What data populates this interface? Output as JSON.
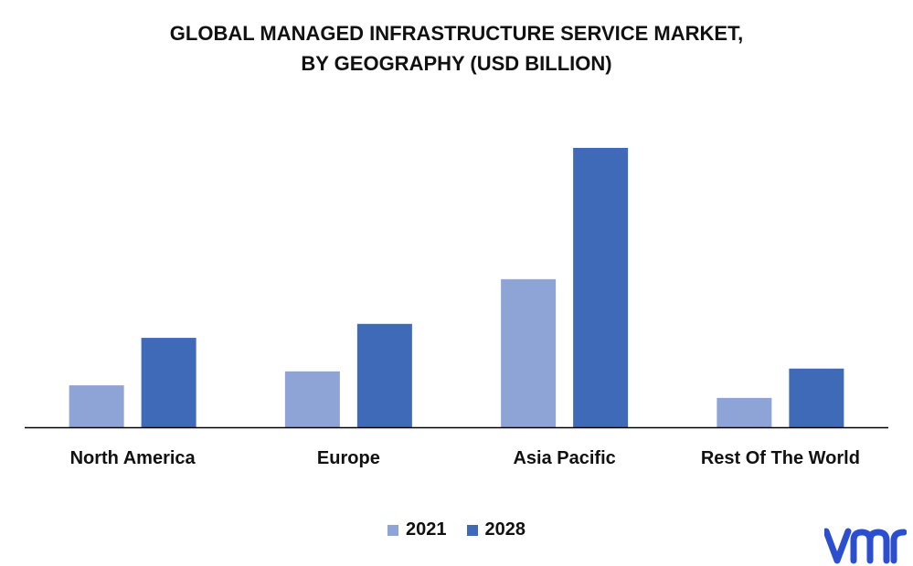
{
  "title_line1": "GLOBAL MANAGED INFRASTRUCTURE SERVICE MARKET,",
  "title_line2": "BY GEOGRAPHY (USD BILLION)",
  "logo_text": "vmr",
  "colors": {
    "s2021": "#8ea3d6",
    "s2028": "#3f6ab8",
    "axis": "#000000"
  },
  "chart_data": {
    "type": "bar",
    "title": "GLOBAL MANAGED INFRASTRUCTURE SERVICE MARKET, BY GEOGRAPHY (USD BILLION)",
    "categories": [
      "North America",
      "Europe",
      "Asia Pacific",
      "Rest Of The World"
    ],
    "series": [
      {
        "name": "2021",
        "values": [
          15,
          20,
          53,
          10.5
        ]
      },
      {
        "name": "2028",
        "values": [
          32,
          37,
          100,
          21
        ]
      }
    ],
    "ylim": [
      0,
      100
    ],
    "grid": false,
    "legend": "bottom-center"
  }
}
